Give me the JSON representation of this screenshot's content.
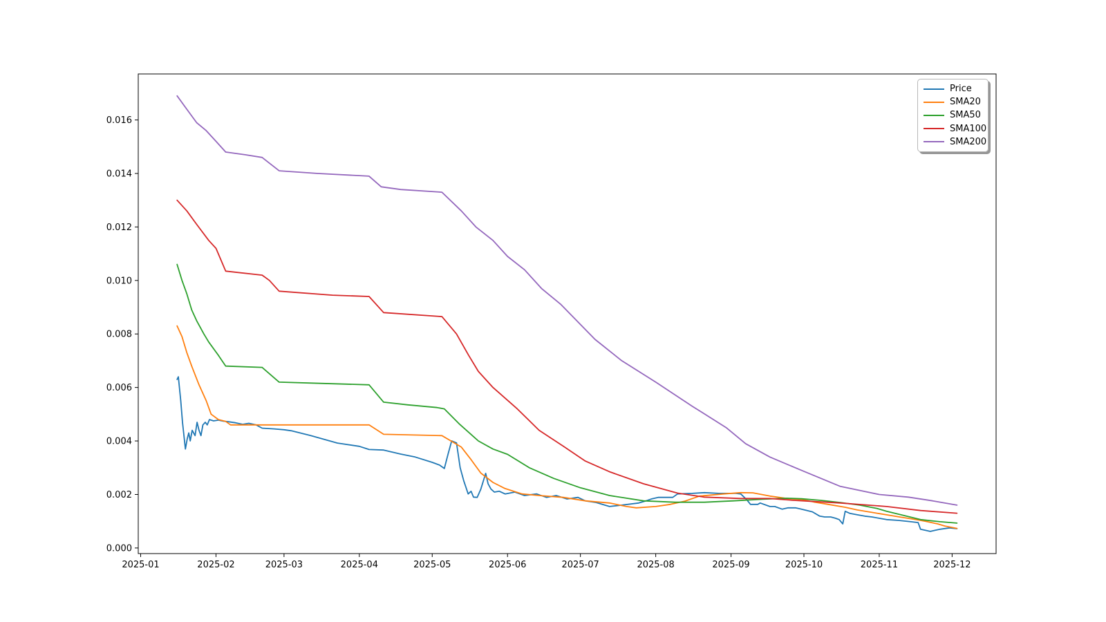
{
  "chart_data": {
    "type": "line",
    "title": "",
    "x_axis": {
      "tick_labels": [
        "2025-01",
        "2025-02",
        "2025-03",
        "2025-04",
        "2025-05",
        "2025-06",
        "2025-07",
        "2025-08",
        "2025-09",
        "2025-10",
        "2025-11",
        "2025-12"
      ],
      "tick_days": [
        0,
        31,
        59,
        90,
        120,
        151,
        181,
        212,
        243,
        273,
        304,
        334
      ],
      "min": -1.0,
      "max": 352.1
    },
    "y_axis": {
      "tick_labels": [
        "0.000",
        "0.002",
        "0.004",
        "0.006",
        "0.008",
        "0.010",
        "0.012",
        "0.014",
        "0.016"
      ],
      "tick_values": [
        0.0,
        0.002,
        0.004,
        0.006,
        0.008,
        0.01,
        0.012,
        0.014,
        0.016
      ],
      "min": -0.00021,
      "max": 0.01772
    },
    "legend": {
      "position": "upper right"
    },
    "series": [
      {
        "name": "Price",
        "color": "#1f77b4",
        "points": [
          [
            15,
            0.0063
          ],
          [
            15.5,
            0.0064
          ],
          [
            16.5,
            0.0055
          ],
          [
            17.2,
            0.0047
          ],
          [
            17.8,
            0.0042
          ],
          [
            18.4,
            0.0037
          ],
          [
            19.2,
            0.0041
          ],
          [
            19.8,
            0.0043
          ],
          [
            20.4,
            0.004
          ],
          [
            21.2,
            0.0044
          ],
          [
            22.4,
            0.0042
          ],
          [
            23.2,
            0.0047
          ],
          [
            24,
            0.0044
          ],
          [
            24.8,
            0.0042
          ],
          [
            25.6,
            0.0046
          ],
          [
            26.6,
            0.0047
          ],
          [
            27.4,
            0.0046
          ],
          [
            28.3,
            0.0048
          ],
          [
            30,
            0.00475
          ],
          [
            32,
            0.00478
          ],
          [
            34,
            0.00474
          ],
          [
            36,
            0.00472
          ],
          [
            39,
            0.00468
          ],
          [
            42,
            0.00462
          ],
          [
            44.5,
            0.00466
          ],
          [
            47.5,
            0.0046
          ],
          [
            50,
            0.00448
          ],
          [
            55,
            0.00445
          ],
          [
            59,
            0.00442
          ],
          [
            62,
            0.00438
          ],
          [
            70,
            0.0042
          ],
          [
            81,
            0.00392
          ],
          [
            90,
            0.0038
          ],
          [
            94,
            0.00368
          ],
          [
            100,
            0.00366
          ],
          [
            107,
            0.00351
          ],
          [
            113,
            0.0034
          ],
          [
            120,
            0.0032
          ],
          [
            123,
            0.0031
          ],
          [
            125,
            0.00297
          ],
          [
            126.5,
            0.0035
          ],
          [
            128,
            0.004
          ],
          [
            130,
            0.00393
          ],
          [
            131.5,
            0.003
          ],
          [
            133,
            0.0025
          ],
          [
            134.8,
            0.00202
          ],
          [
            136,
            0.00212
          ],
          [
            137,
            0.0019
          ],
          [
            138.5,
            0.00189
          ],
          [
            140,
            0.0022
          ],
          [
            142,
            0.00279
          ],
          [
            143,
            0.0024
          ],
          [
            144.2,
            0.0022
          ],
          [
            145.6,
            0.00209
          ],
          [
            147.6,
            0.00212
          ],
          [
            150,
            0.00202
          ],
          [
            154,
            0.00209
          ],
          [
            158,
            0.00196
          ],
          [
            163,
            0.00202
          ],
          [
            167,
            0.00189
          ],
          [
            171,
            0.00196
          ],
          [
            175.5,
            0.00183
          ],
          [
            180,
            0.00189
          ],
          [
            183,
            0.00176
          ],
          [
            187.5,
            0.0017
          ],
          [
            193,
            0.00155
          ],
          [
            198,
            0.0016
          ],
          [
            205,
            0.00168
          ],
          [
            208,
            0.00176
          ],
          [
            210.5,
            0.00184
          ],
          [
            213,
            0.00189
          ],
          [
            219,
            0.00189
          ],
          [
            221,
            0.00202
          ],
          [
            227,
            0.00204
          ],
          [
            232,
            0.00207
          ],
          [
            238,
            0.00204
          ],
          [
            245,
            0.00204
          ],
          [
            247,
            0.00202
          ],
          [
            249.5,
            0.0018
          ],
          [
            251,
            0.00163
          ],
          [
            254,
            0.00163
          ],
          [
            255,
            0.00168
          ],
          [
            259,
            0.00155
          ],
          [
            261,
            0.00155
          ],
          [
            264,
            0.00145
          ],
          [
            266.5,
            0.0015
          ],
          [
            269.5,
            0.0015
          ],
          [
            272,
            0.00145
          ],
          [
            276.5,
            0.00135
          ],
          [
            279.5,
            0.00119
          ],
          [
            281.5,
            0.00116
          ],
          [
            284,
            0.00116
          ],
          [
            286,
            0.00111
          ],
          [
            287.5,
            0.00106
          ],
          [
            289,
            0.0009
          ],
          [
            290,
            0.00137
          ],
          [
            292,
            0.00129
          ],
          [
            295,
            0.00124
          ],
          [
            298,
            0.00119
          ],
          [
            301,
            0.00116
          ],
          [
            304,
            0.00111
          ],
          [
            307,
            0.00106
          ],
          [
            312,
            0.00103
          ],
          [
            317,
            0.00098
          ],
          [
            320,
            0.00095
          ],
          [
            321,
            0.0007
          ],
          [
            325,
            0.00062
          ],
          [
            329,
            0.0007
          ],
          [
            333,
            0.00075
          ],
          [
            336,
            0.00072
          ]
        ]
      },
      {
        "name": "SMA20",
        "color": "#ff7f0e",
        "points": [
          [
            15,
            0.0083
          ],
          [
            17,
            0.0079
          ],
          [
            19,
            0.0073
          ],
          [
            21,
            0.0068
          ],
          [
            24,
            0.0061
          ],
          [
            27,
            0.0055
          ],
          [
            29,
            0.005
          ],
          [
            32,
            0.0048
          ],
          [
            35,
            0.00473
          ],
          [
            37,
            0.0046
          ],
          [
            60,
            0.0046
          ],
          [
            94,
            0.0046
          ],
          [
            100,
            0.00425
          ],
          [
            124,
            0.0042
          ],
          [
            132,
            0.00377
          ],
          [
            136,
            0.0033
          ],
          [
            140,
            0.0028
          ],
          [
            145,
            0.00245
          ],
          [
            150,
            0.00222
          ],
          [
            157,
            0.00202
          ],
          [
            164,
            0.00196
          ],
          [
            174,
            0.00189
          ],
          [
            183,
            0.00176
          ],
          [
            193,
            0.00168
          ],
          [
            200,
            0.00155
          ],
          [
            204,
            0.0015
          ],
          [
            212,
            0.00155
          ],
          [
            218,
            0.00163
          ],
          [
            224,
            0.00175
          ],
          [
            230,
            0.00194
          ],
          [
            240,
            0.00202
          ],
          [
            247,
            0.00207
          ],
          [
            252,
            0.00206
          ],
          [
            259,
            0.00194
          ],
          [
            266,
            0.00185
          ],
          [
            272,
            0.00181
          ],
          [
            277,
            0.00172
          ],
          [
            283,
            0.00163
          ],
          [
            290,
            0.00152
          ],
          [
            295,
            0.00142
          ],
          [
            301,
            0.00133
          ],
          [
            307,
            0.00124
          ],
          [
            313,
            0.00115
          ],
          [
            318,
            0.00108
          ],
          [
            323,
            0.001
          ],
          [
            328,
            0.0009
          ],
          [
            331,
            0.00082
          ],
          [
            336,
            0.00073
          ]
        ]
      },
      {
        "name": "SMA50",
        "color": "#2ca02c",
        "points": [
          [
            15,
            0.0106
          ],
          [
            17,
            0.01
          ],
          [
            19,
            0.0095
          ],
          [
            21,
            0.0089
          ],
          [
            23,
            0.0085
          ],
          [
            26,
            0.008
          ],
          [
            28,
            0.0077
          ],
          [
            32,
            0.0072
          ],
          [
            35,
            0.0068
          ],
          [
            50,
            0.00675
          ],
          [
            57,
            0.0062
          ],
          [
            75,
            0.00615
          ],
          [
            94,
            0.0061
          ],
          [
            100,
            0.00545
          ],
          [
            110,
            0.00535
          ],
          [
            122,
            0.00525
          ],
          [
            125,
            0.0052
          ],
          [
            131,
            0.00465
          ],
          [
            139,
            0.004
          ],
          [
            145,
            0.0037
          ],
          [
            151,
            0.0035
          ],
          [
            160,
            0.003
          ],
          [
            170,
            0.0026
          ],
          [
            181,
            0.00225
          ],
          [
            193,
            0.00196
          ],
          [
            207,
            0.00176
          ],
          [
            220,
            0.00171
          ],
          [
            232,
            0.00171
          ],
          [
            244,
            0.00176
          ],
          [
            256,
            0.00182
          ],
          [
            266,
            0.00186
          ],
          [
            272,
            0.00184
          ],
          [
            280,
            0.00178
          ],
          [
            288,
            0.0017
          ],
          [
            296,
            0.0016
          ],
          [
            303,
            0.00148
          ],
          [
            307,
            0.00137
          ],
          [
            314,
            0.00122
          ],
          [
            321,
            0.00106
          ],
          [
            329,
            0.00098
          ],
          [
            336,
            0.00093
          ]
        ]
      },
      {
        "name": "SMA100",
        "color": "#d62728",
        "points": [
          [
            15,
            0.013
          ],
          [
            19,
            0.0126
          ],
          [
            23,
            0.0121
          ],
          [
            28,
            0.0115
          ],
          [
            31,
            0.0112
          ],
          [
            35,
            0.01035
          ],
          [
            50,
            0.0102
          ],
          [
            53,
            0.01
          ],
          [
            57,
            0.0096
          ],
          [
            79,
            0.00945
          ],
          [
            94,
            0.0094
          ],
          [
            100,
            0.0088
          ],
          [
            124,
            0.00865
          ],
          [
            130,
            0.008
          ],
          [
            135,
            0.0072
          ],
          [
            139,
            0.0066
          ],
          [
            145,
            0.006
          ],
          [
            155,
            0.0052
          ],
          [
            164,
            0.0044
          ],
          [
            174,
            0.0038
          ],
          [
            183,
            0.00325
          ],
          [
            193,
            0.00285
          ],
          [
            207,
            0.0024
          ],
          [
            221,
            0.00205
          ],
          [
            232,
            0.0019
          ],
          [
            247,
            0.00185
          ],
          [
            259,
            0.00185
          ],
          [
            269,
            0.00178
          ],
          [
            288,
            0.00168
          ],
          [
            307,
            0.00155
          ],
          [
            321,
            0.0014
          ],
          [
            336,
            0.0013
          ]
        ]
      },
      {
        "name": "SMA200",
        "color": "#9467bd",
        "points": [
          [
            15,
            0.0169
          ],
          [
            19,
            0.0164
          ],
          [
            23,
            0.0159
          ],
          [
            27,
            0.0156
          ],
          [
            31,
            0.0152
          ],
          [
            35,
            0.0148
          ],
          [
            43,
            0.0147
          ],
          [
            50,
            0.0146
          ],
          [
            57,
            0.0141
          ],
          [
            73,
            0.014
          ],
          [
            94,
            0.0139
          ],
          [
            99,
            0.0135
          ],
          [
            107,
            0.0134
          ],
          [
            124,
            0.0133
          ],
          [
            132,
            0.0126
          ],
          [
            138,
            0.012
          ],
          [
            145,
            0.0115
          ],
          [
            151,
            0.0109
          ],
          [
            158,
            0.0104
          ],
          [
            165,
            0.0097
          ],
          [
            173,
            0.0091
          ],
          [
            187,
            0.0078
          ],
          [
            198,
            0.007
          ],
          [
            212,
            0.0062
          ],
          [
            227,
            0.0053
          ],
          [
            241,
            0.0045
          ],
          [
            249,
            0.0039
          ],
          [
            259,
            0.0034
          ],
          [
            272,
            0.0029
          ],
          [
            288,
            0.0023
          ],
          [
            304,
            0.002
          ],
          [
            316,
            0.0019
          ],
          [
            326,
            0.00176
          ],
          [
            336,
            0.0016
          ]
        ]
      }
    ]
  }
}
